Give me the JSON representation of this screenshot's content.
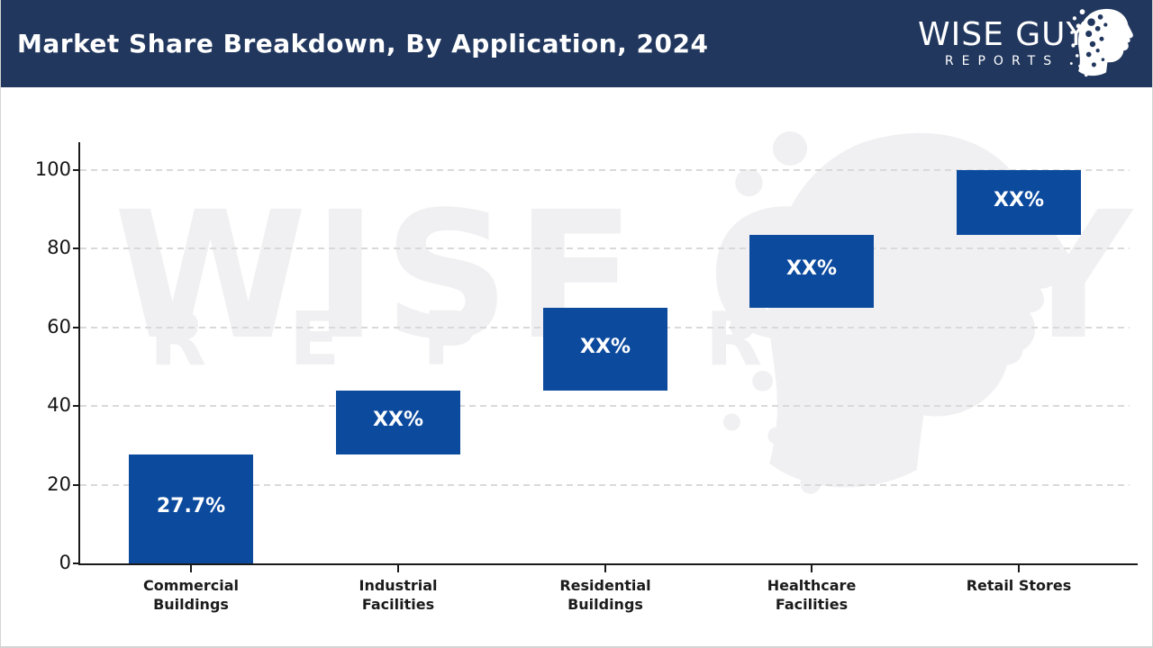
{
  "header": {
    "title": "Market Share Breakdown, By Application, 2024",
    "brand": {
      "line1": "WISE GUY",
      "line2": "REPORTS"
    }
  },
  "watermark": {
    "line1": "WISE GUY",
    "line2": "REPORTS"
  },
  "colors": {
    "header_bg": "#21375e",
    "bar_fill": "#0c4a9e",
    "bar_text": "#ffffff",
    "axis": "#1a1a1a",
    "gridline": "#d9d9d9",
    "watermark": "#f0f0f2"
  },
  "chart_data": {
    "type": "bar",
    "subtype": "waterfall",
    "title": "Market Share Breakdown, By Application, 2024",
    "xlabel": "",
    "ylabel": "",
    "ylim": [
      0,
      105
    ],
    "yticks": [
      0,
      20,
      40,
      60,
      80,
      100
    ],
    "grid": "dashed horizontal",
    "legend": "none",
    "categories": [
      [
        "Commercial",
        "Buildings"
      ],
      [
        "Industrial",
        "Facilities"
      ],
      [
        "Residential",
        "Buildings"
      ],
      [
        "Healthcare",
        "Facilities"
      ],
      [
        "Retail Stores"
      ]
    ],
    "bars": [
      {
        "category": "Commercial Buildings",
        "start": 0,
        "end": 27.7,
        "label": "27.7%"
      },
      {
        "category": "Industrial Facilities",
        "start": 27.7,
        "end": 44,
        "label": "XX%"
      },
      {
        "category": "Residential Buildings",
        "start": 44,
        "end": 65,
        "label": "XX%"
      },
      {
        "category": "Healthcare Facilities",
        "start": 65,
        "end": 83.5,
        "label": "XX%"
      },
      {
        "category": "Retail Stores",
        "start": 83.5,
        "end": 100,
        "label": "XX%"
      }
    ]
  }
}
